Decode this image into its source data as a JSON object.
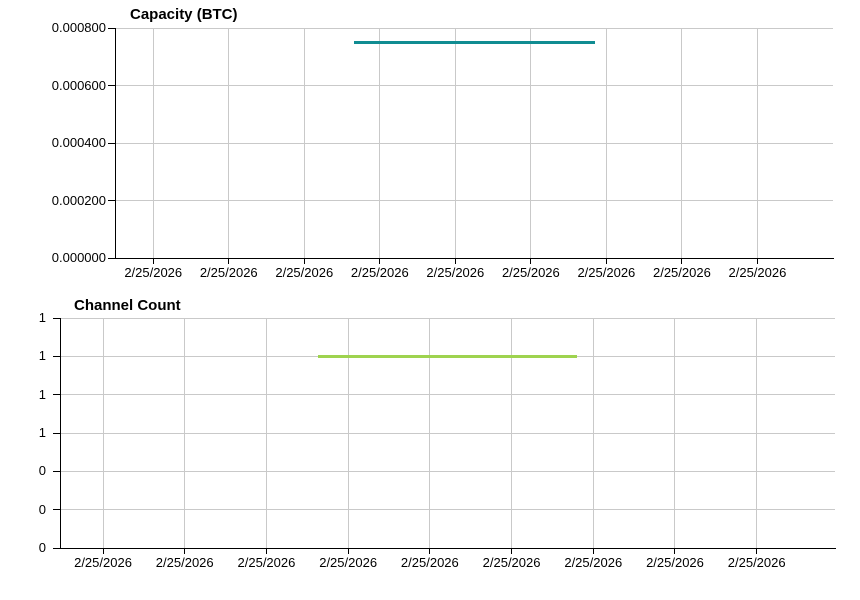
{
  "page": {
    "background": "#ffffff"
  },
  "chart_data": [
    {
      "type": "line",
      "title": "Capacity (BTC)",
      "x_axis": {
        "tick_labels": [
          "2/25/2026",
          "2/25/2026",
          "2/25/2026",
          "2/25/2026",
          "2/25/2026",
          "2/25/2026",
          "2/25/2026",
          "2/25/2026",
          "2/25/2026"
        ]
      },
      "y_axis": {
        "range": [
          0,
          0.0008
        ],
        "tick_values": [
          0.0008,
          0.0006,
          0.0004,
          0.0002,
          0
        ],
        "tick_labels": [
          "0.000800",
          "0.000600",
          "0.000400",
          "0.000200",
          "0.000000"
        ]
      },
      "series": [
        {
          "name": "capacity-btc",
          "color": "#108c92",
          "value": 0.00075,
          "x_start_frac": 0.3325,
          "x_end_frac": 0.668
        }
      ],
      "grid": {
        "show": true,
        "color": "#c9c9c9"
      },
      "axis_color": "#000000",
      "legend": "none"
    },
    {
      "type": "line",
      "title": "Channel Count",
      "x_axis": {
        "tick_labels": [
          "2/25/2026",
          "2/25/2026",
          "2/25/2026",
          "2/25/2026",
          "2/25/2026",
          "2/25/2026",
          "2/25/2026",
          "2/25/2026",
          "2/25/2026"
        ]
      },
      "y_axis": {
        "range": [
          0,
          1.2
        ],
        "tick_values": [
          1.2,
          1.0,
          0.8,
          0.6,
          0.4,
          0.2,
          0
        ],
        "tick_labels": [
          "1",
          "1",
          "1",
          "1",
          "0",
          "0",
          "0"
        ]
      },
      "series": [
        {
          "name": "channel-count",
          "color": "#9ed34f",
          "value": 1,
          "x_start_frac": 0.3325,
          "x_end_frac": 0.667
        }
      ],
      "grid": {
        "show": true,
        "color": "#c9c9c9"
      },
      "axis_color": "#000000",
      "legend": "none"
    }
  ]
}
